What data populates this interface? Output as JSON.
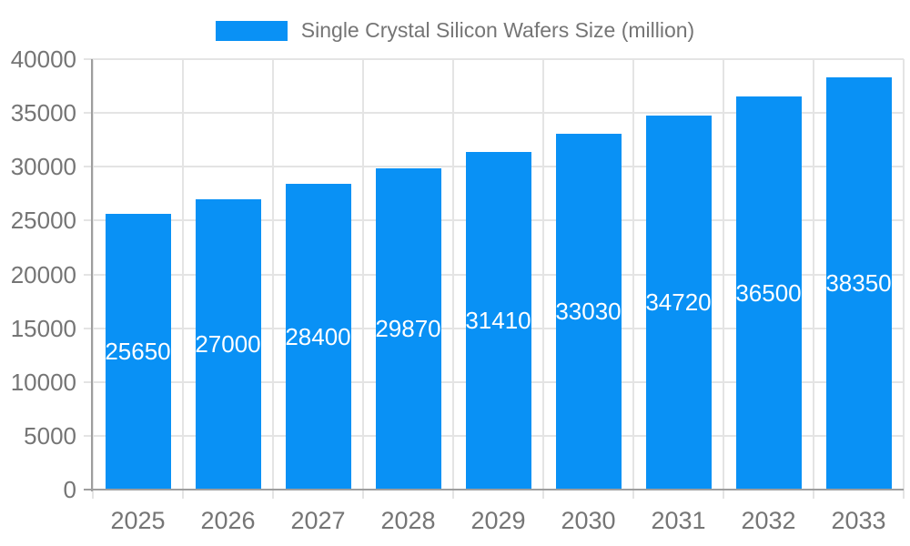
{
  "legend": {
    "label": "Single Crystal Silicon Wafers Size (million)"
  },
  "colors": {
    "bar": "#0991f5",
    "grid": "#e4e4e4",
    "axis": "#9e9e9e",
    "tick_text": "#757575",
    "bar_label_text": "#ffffff",
    "background": "#ffffff"
  },
  "chart_data": {
    "type": "bar",
    "title": "Single Crystal Silicon Wafers Size (million)",
    "categories": [
      "2025",
      "2026",
      "2027",
      "2028",
      "2029",
      "2030",
      "2031",
      "2032",
      "2033"
    ],
    "values": [
      25650,
      27000,
      28400,
      29870,
      31410,
      33030,
      34720,
      36500,
      38350
    ],
    "series": [
      {
        "name": "Single Crystal Silicon Wafers Size (million)",
        "values": [
          25650,
          27000,
          28400,
          29870,
          31410,
          33030,
          34720,
          36500,
          38350
        ]
      }
    ],
    "bar_value_labels": [
      "25650",
      "27000",
      "28400",
      "29870",
      "31410",
      "33030",
      "34720",
      "36500",
      "38350"
    ],
    "xlabel": "",
    "ylabel": "",
    "ylim": [
      0,
      40000
    ],
    "y_ticks": [
      0,
      5000,
      10000,
      15000,
      20000,
      25000,
      30000,
      35000,
      40000
    ],
    "grid": true,
    "legend_position": "top"
  }
}
